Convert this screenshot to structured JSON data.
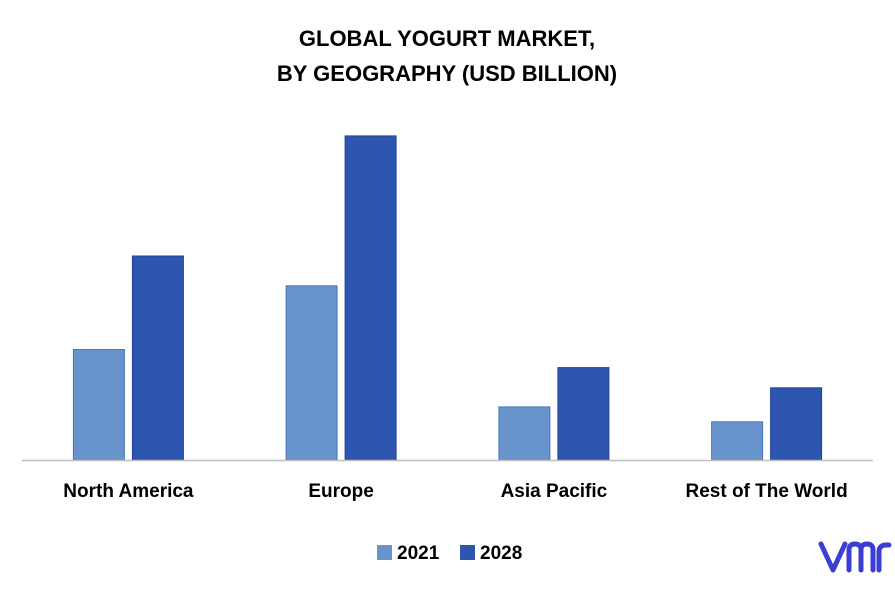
{
  "chart_data": {
    "type": "bar",
    "title_lines": [
      "GLOBAL YOGURT MARKET,",
      "BY GEOGRAPHY (USD BILLION)"
    ],
    "categories": [
      "North America",
      "Europe",
      "Asia Pacific",
      "Rest of The World"
    ],
    "series": [
      {
        "name": "2021",
        "values": [
          10.4,
          16.4,
          5.0,
          3.6
        ],
        "color": "#6993CB"
      },
      {
        "name": "2028",
        "values": [
          19.2,
          30.5,
          8.7,
          6.8
        ],
        "color": "#2E56B0"
      }
    ],
    "ylim": [
      0,
      32
    ],
    "grid": false,
    "legend_position": "bottom",
    "xlabel": "",
    "ylabel": ""
  },
  "colors": {
    "axis": "#BFBFBF",
    "title": "#000000",
    "text": "#000000",
    "logo": "#3A3FD1",
    "bar_outline_2021": "#4A77B8",
    "bar_outline_2028": "#1F4496"
  },
  "logo": {
    "text": "vmr",
    "icon": "vmr-logo"
  }
}
